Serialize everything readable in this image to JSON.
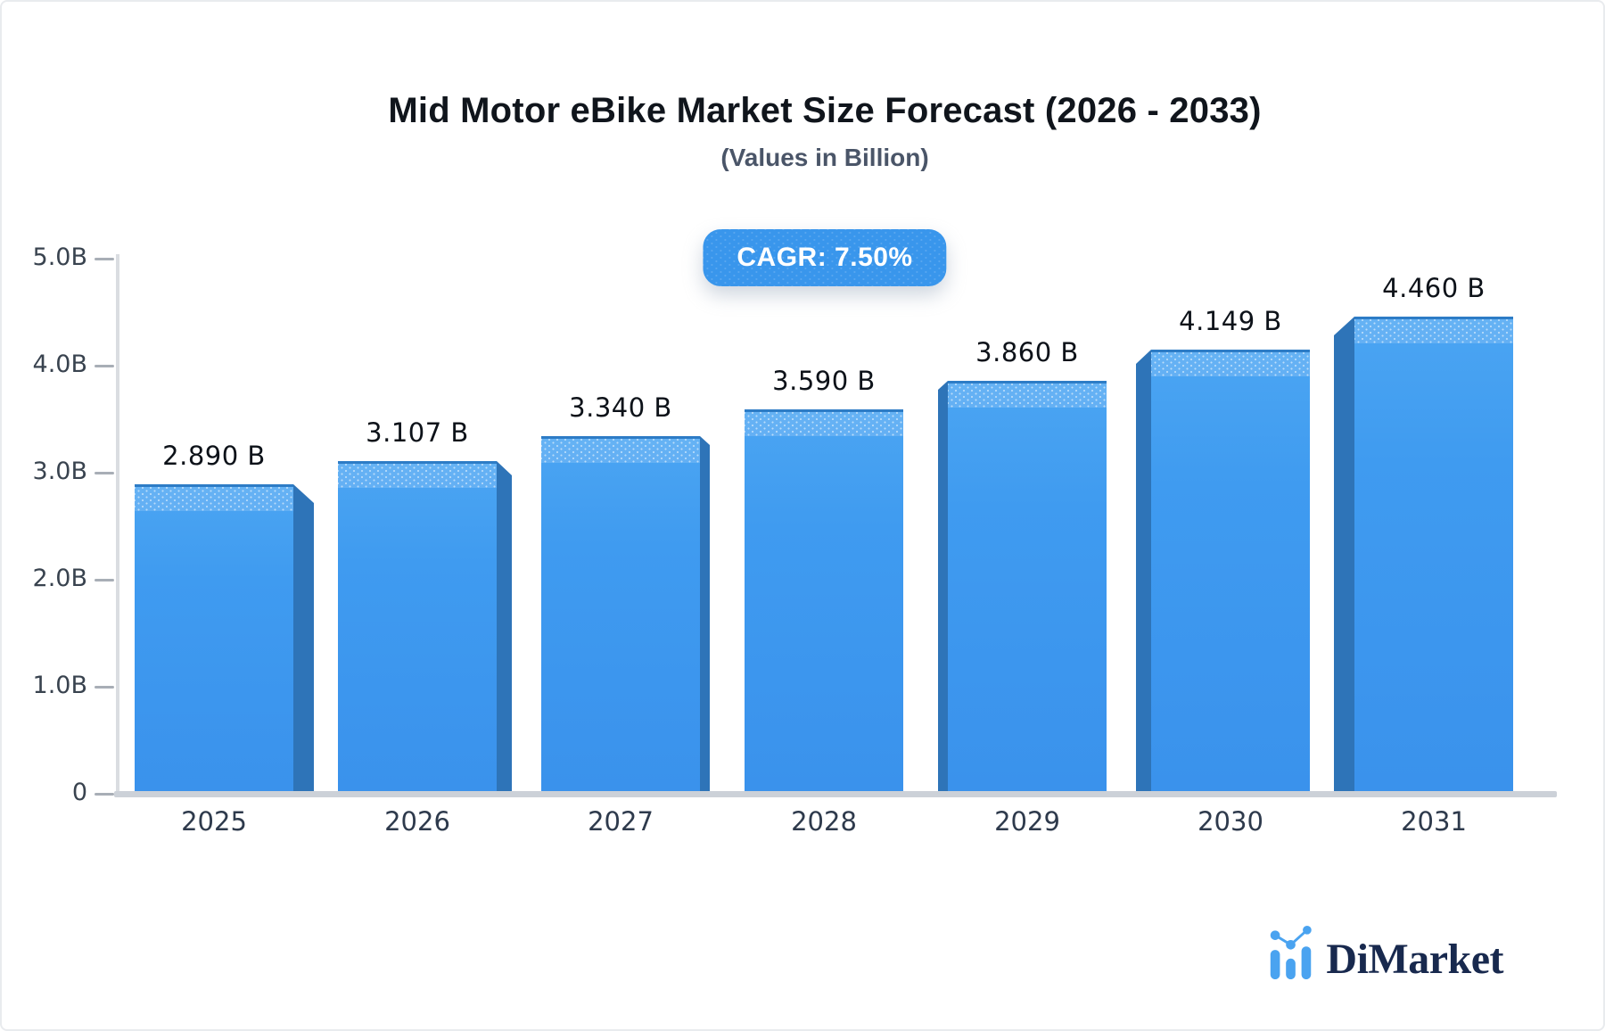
{
  "header": {
    "title": "Mid Motor eBike Market Size Forecast (2026 - 2033)",
    "subtitle": "(Values in Billion)",
    "cagr_badge": "CAGR: 7.50%"
  },
  "chart_data": {
    "type": "bar",
    "title": "Mid Motor eBike Market Size Forecast (2026 - 2033)",
    "subtitle": "(Values in Billion)",
    "categories": [
      "2025",
      "2026",
      "2027",
      "2028",
      "2029",
      "2030",
      "2031"
    ],
    "values": [
      2.89,
      3.107,
      3.34,
      3.59,
      3.86,
      4.149,
      4.46
    ],
    "value_labels": [
      "2.890 B",
      "3.107 B",
      "3.340 B",
      "3.590 B",
      "3.860 B",
      "4.149 B",
      "4.460 B"
    ],
    "unit": "Billion",
    "annotations": [
      "CAGR: 7.50%"
    ],
    "y_axis": {
      "ticks": [
        "0",
        "1.0B",
        "2.0B",
        "3.0B",
        "4.0B",
        "5.0B"
      ],
      "tick_values": [
        0,
        1,
        2,
        3,
        4,
        5
      ],
      "min": 0,
      "max": 5
    },
    "grid": "off",
    "legend": "none",
    "bar_color": "#3f9bf0",
    "bar_side_color": "#2e74b8"
  },
  "branding": {
    "logo_text": "DiMarket",
    "logo_icon": "mini-bar-chart-icon",
    "logo_text_color": "#18294e",
    "logo_icon_color": "#4aa3f0"
  },
  "colors": {
    "badge_bg": "#3996ec",
    "badge_text": "#ffffff",
    "title_text": "#10151c",
    "subtitle_text": "#4a5568",
    "axis_text": "#39434f",
    "baseline": "#ccd1d8"
  }
}
